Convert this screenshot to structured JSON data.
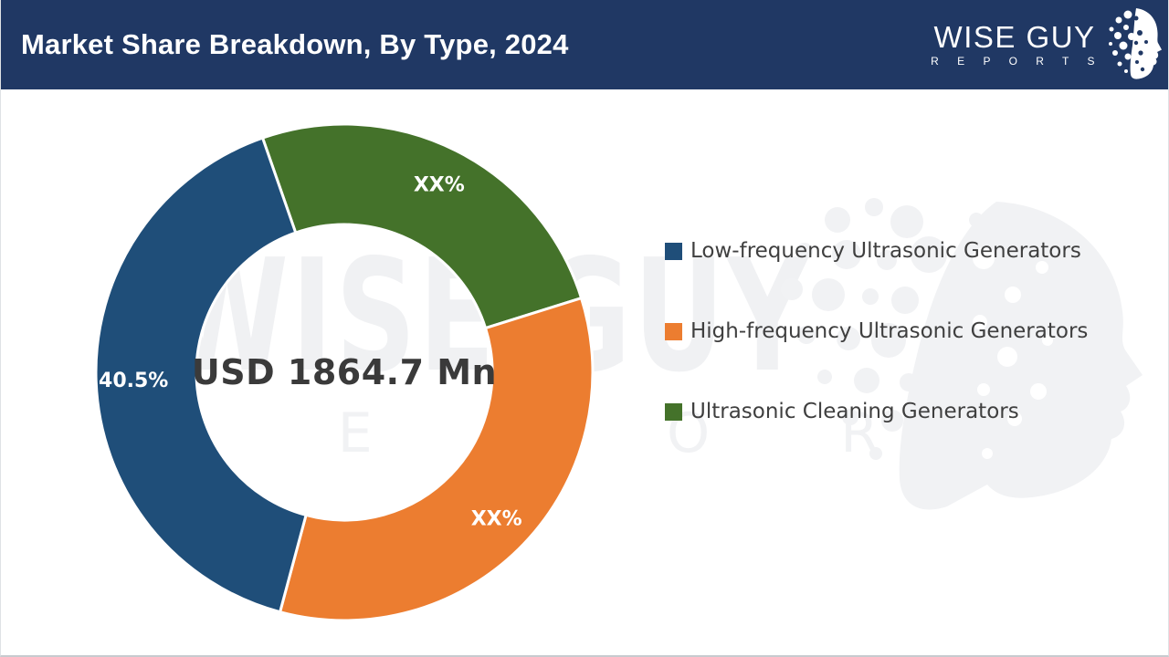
{
  "header": {
    "title": "Market Share Breakdown, By Type, 2024",
    "bg_color": "#203864",
    "logo": {
      "line1": "WISE GUY",
      "line2": "REPORTS"
    }
  },
  "watermark": {
    "line1": "WISE GUY",
    "line2": "REPORTS"
  },
  "chart_data": {
    "type": "pie",
    "subtype": "donut",
    "title": "Market Share Breakdown, By Type, 2024",
    "center_label": "USD 1864.7 Mn",
    "start_angle_deg_clockwise_from_top": -19.2,
    "legend_position": "right",
    "slices": [
      {
        "name": "Ultrasonic Cleaning Generators",
        "value_pct": 25.5,
        "label": "XX%",
        "color": "#44722A"
      },
      {
        "name": "High-frequency Ultrasonic Generators",
        "value_pct": 34.0,
        "label": "XX%",
        "color": "#EC7D30"
      },
      {
        "name": "Low-frequency Ultrasonic Generators",
        "value_pct": 40.5,
        "label": "40.5%",
        "color": "#1F4E79"
      }
    ]
  },
  "legend": {
    "items": [
      {
        "label": "Low-frequency Ultrasonic Generators",
        "color": "#1F4E79"
      },
      {
        "label": "High-frequency Ultrasonic Generators",
        "color": "#EC7D30"
      },
      {
        "label": "Ultrasonic Cleaning Generators",
        "color": "#44722A"
      }
    ]
  },
  "colors": {
    "header_bg": "#203864",
    "text_dark": "#3a3a3a",
    "watermark": "#f0f1f3"
  }
}
